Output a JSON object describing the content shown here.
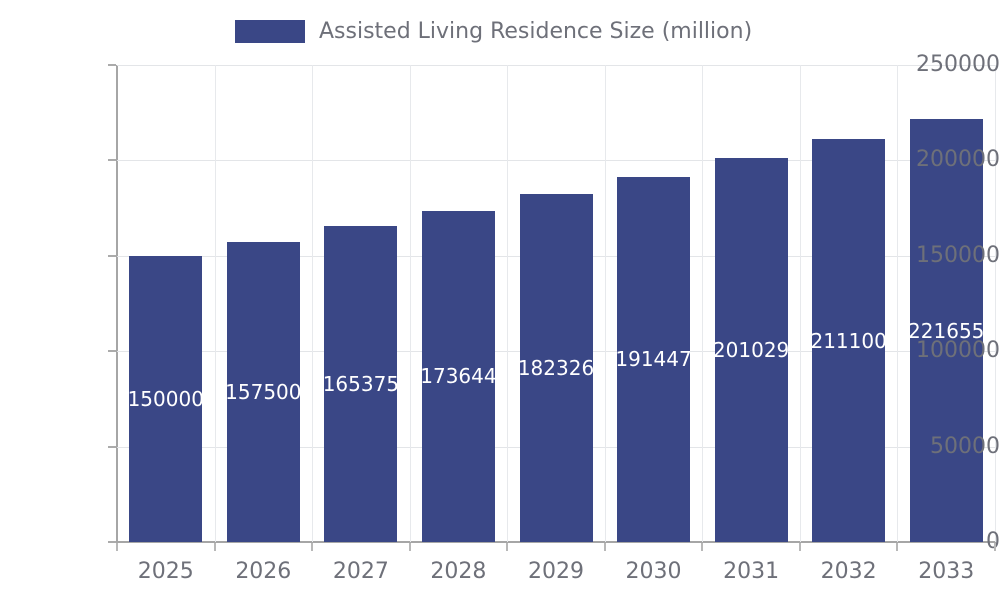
{
  "chart_data": {
    "type": "bar",
    "title": "",
    "legend": {
      "label": "Assisted Living Residence Size (million)",
      "position": "top-center"
    },
    "categories": [
      "2025",
      "2026",
      "2027",
      "2028",
      "2029",
      "2030",
      "2031",
      "2032",
      "2033"
    ],
    "series": [
      {
        "name": "Assisted Living Residence Size (million)",
        "values": [
          150000,
          157500,
          165375,
          173644,
          182326,
          191447,
          201029,
          211100,
          221655
        ]
      }
    ],
    "value_labels": [
      "150000",
      "157500",
      "165375",
      "173644",
      "182326",
      "191447",
      "201029",
      "211100",
      "221655"
    ],
    "xlabel": "",
    "ylabel": "",
    "ylim": [
      0,
      250000
    ],
    "yticks": [
      0,
      50000,
      100000,
      150000,
      200000,
      250000
    ],
    "ytick_labels": [
      "0",
      "50000",
      "100000",
      "150000",
      "200000",
      "250000"
    ],
    "grid": "horizontal and vertical gridlines on",
    "colors": {
      "bar": "#3a4786",
      "value_label_text": "#ffffff",
      "axis_text": "#6e7079",
      "legend_text": "#6e7079",
      "gridline": "#e3e5e8",
      "axis_line": "#a6a6a6",
      "background": "#ffffff"
    }
  }
}
